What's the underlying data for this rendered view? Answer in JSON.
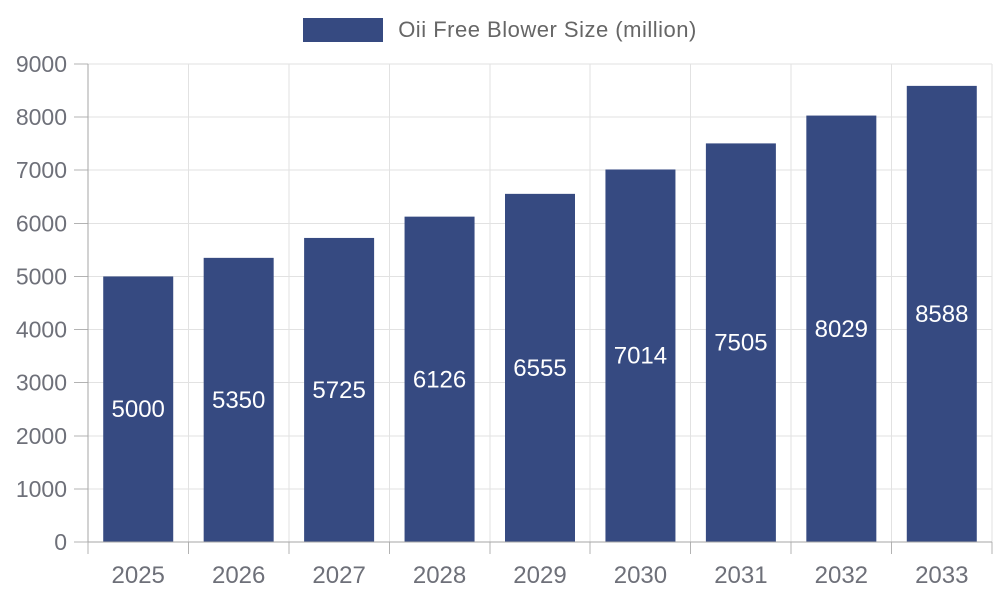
{
  "legend": {
    "label": "Oii Free Blower Size (million)"
  },
  "chart_data": {
    "type": "bar",
    "title": "Oii Free Blower Size (million)",
    "categories": [
      "2025",
      "2026",
      "2027",
      "2028",
      "2029",
      "2030",
      "2031",
      "2032",
      "2033"
    ],
    "values": [
      5000,
      5350,
      5725,
      6126,
      6555,
      7014,
      7505,
      8029,
      8588
    ],
    "bar_value_labels": [
      "5000",
      "5350",
      "5725",
      "6126",
      "6555",
      "7014",
      "7505",
      "8029",
      "8588"
    ],
    "y_tick_labels": [
      "0",
      "1000",
      "2000",
      "3000",
      "4000",
      "5000",
      "6000",
      "7000",
      "8000",
      "9000"
    ],
    "xlabel": "",
    "ylabel": "",
    "ylim": [
      0,
      9000
    ],
    "y_tick_step": 1000,
    "grid": "on",
    "legend_position": "top-center",
    "colors": {
      "bar": "#364a81",
      "bar_label": "#ffffff",
      "axis_text": "#6e7079",
      "legend_text": "#666666",
      "grid_line": "#e2e2e2",
      "axis_line": "#a6a6a6",
      "tick_line": "#b3b3b3",
      "background": "#ffffff"
    }
  }
}
